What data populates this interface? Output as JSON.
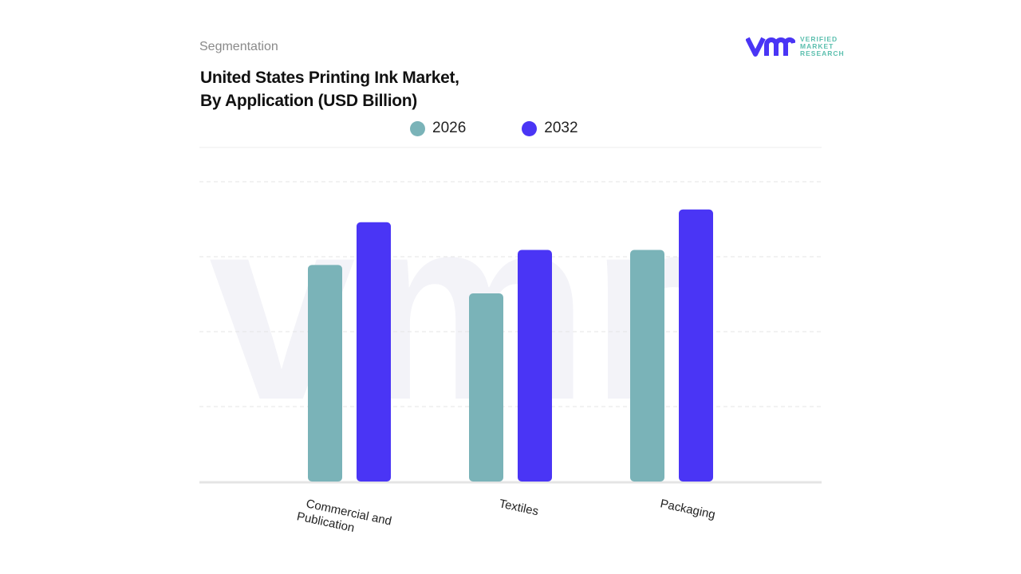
{
  "header": {
    "segment_label": "Segmentation",
    "title_line1": "United States Printing Ink Market,",
    "title_line2": "By Application (USD Billion)"
  },
  "logo": {
    "line1": "VERIFIED",
    "line2": "MARKET",
    "line3": "RESEARCH",
    "mark": "vmr"
  },
  "chart_data": {
    "type": "bar",
    "title": "United States Printing Ink Market, By Application (USD Billion)",
    "categories": [
      "Commercial and Publication",
      "Textiles",
      "Packaging"
    ],
    "series": [
      {
        "name": "2026",
        "color": "#7ab3b8",
        "values": [
          2.89,
          2.51,
          3.09
        ]
      },
      {
        "name": "2032",
        "color": "#4a35f5",
        "values": [
          3.46,
          3.09,
          3.63
        ]
      }
    ],
    "ylim": [
      0,
      4
    ],
    "grid": true,
    "legend": "top-center",
    "xlabel": "",
    "ylabel": ""
  }
}
